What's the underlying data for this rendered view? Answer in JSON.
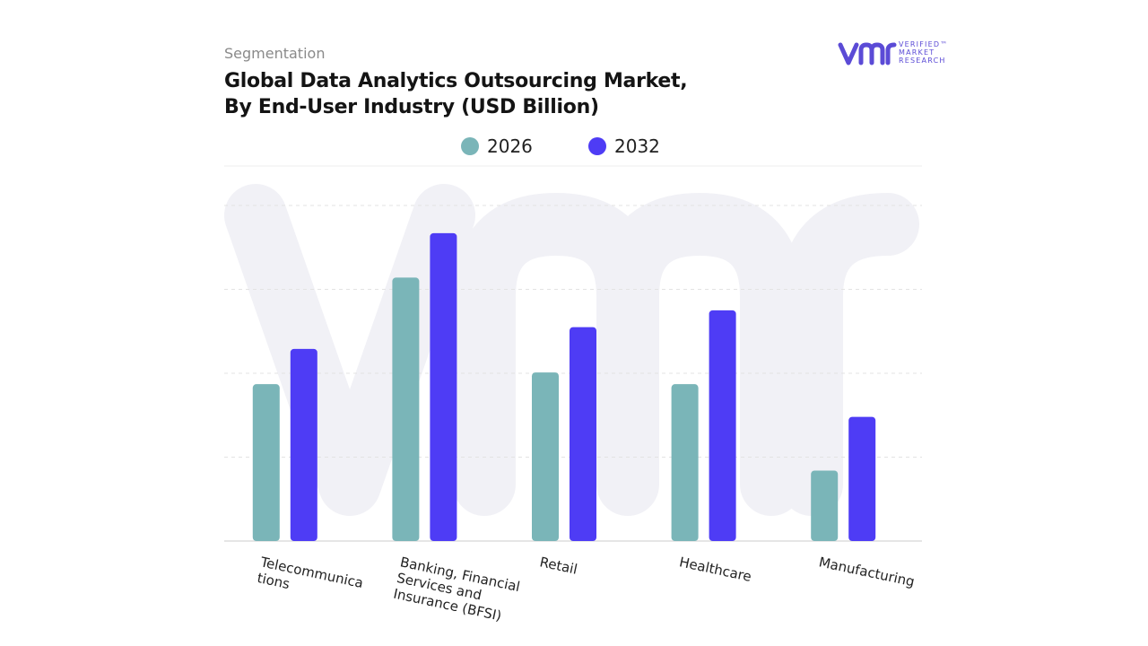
{
  "header": {
    "kicker": "Segmentation",
    "title_line1": "Global Data Analytics Outsourcing Market,",
    "title_line2": "By End-User Industry (USD Billion)"
  },
  "logo": {
    "line1": "VERIFIED™",
    "line2": "MARKET",
    "line3": "RESEARCH",
    "color": "#5b4bd6"
  },
  "chart_data": {
    "type": "bar",
    "title": "Global Data Analytics Outsourcing Market, By End-User Industry (USD Billion)",
    "xlabel": "",
    "ylabel": "",
    "categories": [
      "Telecommunications",
      "Banking, Financial Services and Insurance (BFSI)",
      "Retail",
      "Healthcare",
      "Manufacturing"
    ],
    "category_label_lines": [
      [
        "Telecommunica",
        "tions"
      ],
      [
        "Banking, Financial",
        "Services and",
        "Insurance (BFSI)"
      ],
      [
        "Retail"
      ],
      [
        "Healthcare"
      ],
      [
        "Manufacturing"
      ]
    ],
    "series": [
      {
        "name": "2026",
        "color": "#7ab5b8",
        "values": [
          1.87,
          3.14,
          2.01,
          1.87,
          0.84
        ]
      },
      {
        "name": "2032",
        "color": "#4e3cf5",
        "values": [
          2.29,
          3.67,
          2.55,
          2.75,
          1.48
        ]
      }
    ],
    "ylim": [
      0,
      4.0
    ],
    "grid": true,
    "legend": "top-center",
    "y_tick_labels_shown": false
  }
}
